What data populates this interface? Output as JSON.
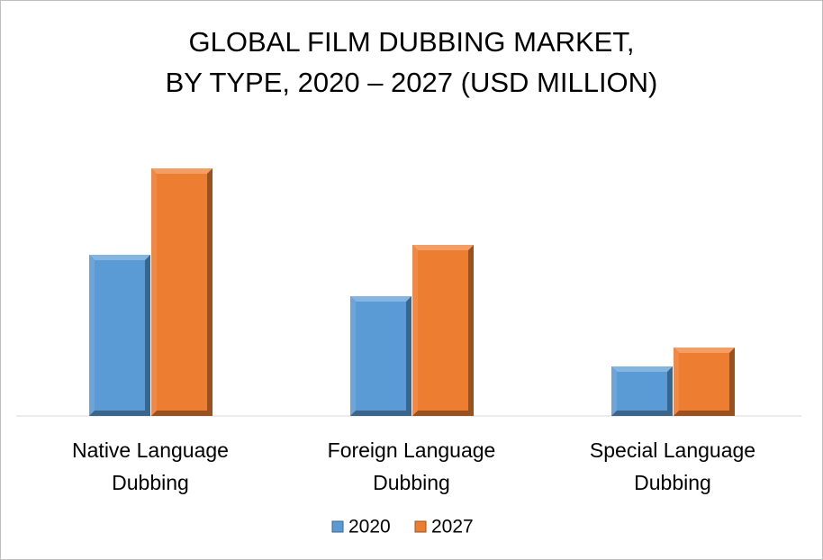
{
  "chart_data": {
    "type": "bar",
    "title": [
      "GLOBAL FILM DUBBING MARKET,",
      "BY TYPE, 2020 – 2027 (USD MILLION)"
    ],
    "categories": [
      "Native Language Dubbing",
      "Foreign Language Dubbing",
      "Special Language Dubbing"
    ],
    "series": [
      {
        "name": "2020",
        "color": "#5b9bd5",
        "values": [
          179,
          133,
          55
        ]
      },
      {
        "name": "2027",
        "color": "#ed7d31",
        "values": [
          275,
          190,
          76
        ]
      }
    ],
    "ylim": [
      0,
      300
    ],
    "legend": "bottom"
  }
}
